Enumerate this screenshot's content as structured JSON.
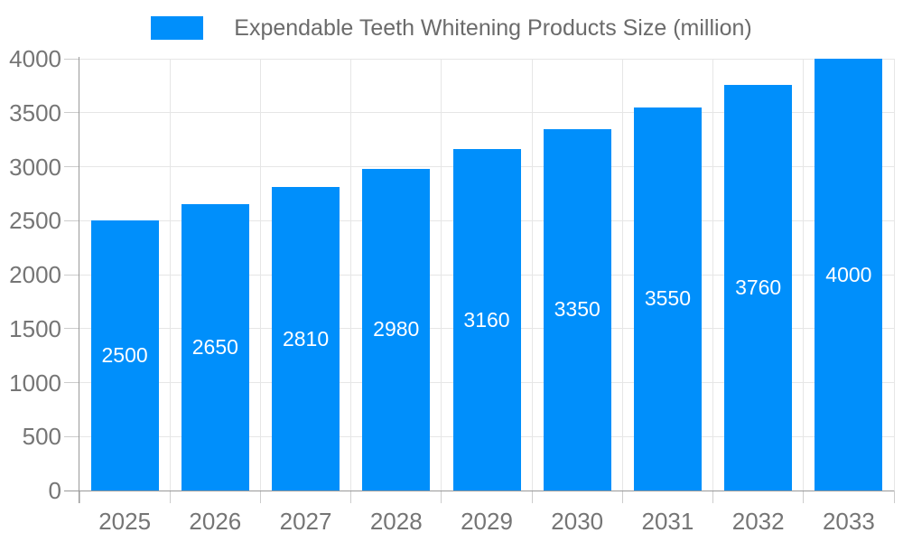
{
  "chart_data": {
    "type": "bar",
    "title": "Expendable Teeth Whitening Products Size (million)",
    "categories": [
      "2025",
      "2026",
      "2027",
      "2028",
      "2029",
      "2030",
      "2031",
      "2032",
      "2033"
    ],
    "values": [
      2500,
      2650,
      2810,
      2980,
      3160,
      3350,
      3550,
      3760,
      4000
    ],
    "xlabel": "",
    "ylabel": "",
    "ylim": [
      0,
      4000
    ],
    "ytick_step": 500,
    "ytick_labels": [
      "0",
      "500",
      "1000",
      "1500",
      "2000",
      "2500",
      "3000",
      "3500",
      "4000"
    ],
    "grid": true,
    "legend_position": "top",
    "value_labels_position": "center-inside",
    "colors": {
      "bar": "#008FFB",
      "value_text": "#ffffff",
      "axis_text": "#757575",
      "legend_text": "#6b6b6b",
      "grid_line": "#e6e6e6",
      "tick_line": "#cccccc",
      "axis_line": "#999999",
      "background": "#ffffff"
    }
  }
}
